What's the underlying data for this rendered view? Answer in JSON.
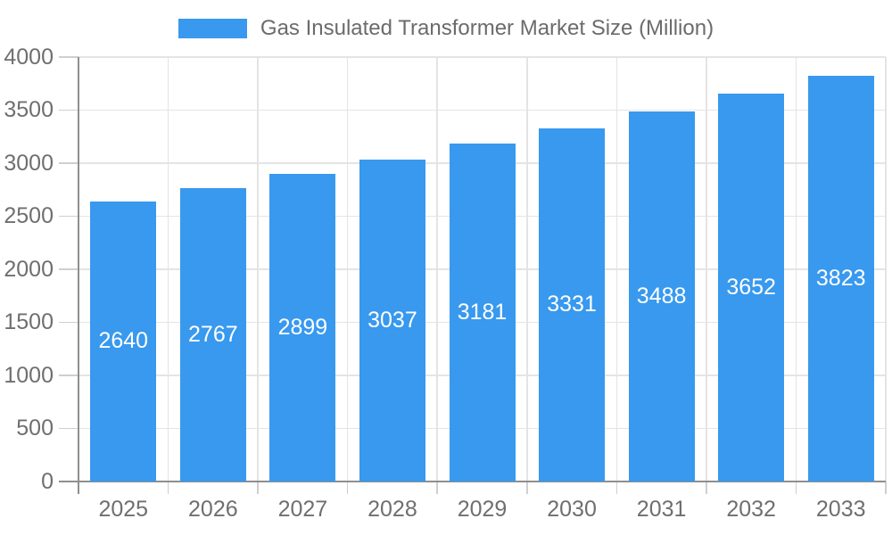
{
  "legend": {
    "label": "Gas Insulated Transformer Market Size (Million)"
  },
  "colors": {
    "bar": "#3899ee",
    "grid_line": "#e4e4e4",
    "tick": "#cfcfcf",
    "axis_line": "#8f8f8f",
    "axis_text": "#6f6f6f",
    "legend_text": "#6b6b6b",
    "value_label": "#ffffff",
    "background": "#ffffff"
  },
  "chart_data": {
    "type": "bar",
    "title": "Gas Insulated Transformer Market Size (Million)",
    "categories": [
      "2025",
      "2026",
      "2027",
      "2028",
      "2029",
      "2030",
      "2031",
      "2032",
      "2033"
    ],
    "values": [
      2640,
      2767,
      2899,
      3037,
      3181,
      3331,
      3488,
      3652,
      3823
    ],
    "xlabel": "",
    "ylabel": "",
    "ylim": [
      0,
      4000
    ],
    "yticks": [
      0,
      500,
      1000,
      1500,
      2000,
      2500,
      3000,
      3500,
      4000
    ],
    "grid": true,
    "legend_position": "top",
    "bar_label_position": "center"
  }
}
